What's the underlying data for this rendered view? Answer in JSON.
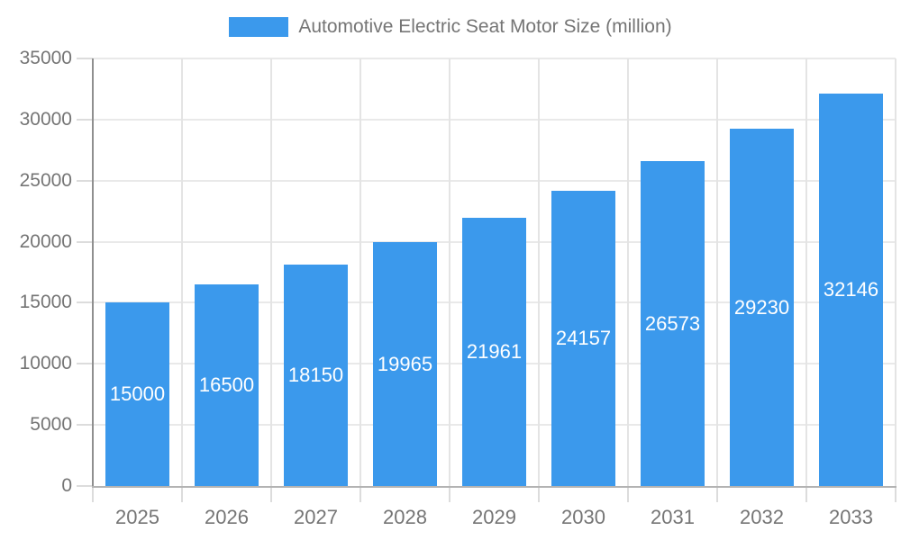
{
  "legend": {
    "items": [
      {
        "label": "Automotive Electric Seat Motor Size (million)",
        "color": "#3b99ec"
      }
    ]
  },
  "chart_data": {
    "type": "bar",
    "categories": [
      "2025",
      "2026",
      "2027",
      "2028",
      "2029",
      "2030",
      "2031",
      "2032",
      "2033"
    ],
    "series": [
      {
        "name": "Automotive Electric Seat Motor Size (million)",
        "values": [
          15000,
          16500,
          18150,
          19965,
          21961,
          24157,
          26573,
          29230,
          32146
        ],
        "color": "#3b99ec"
      }
    ],
    "yticks": [
      0,
      5000,
      10000,
      15000,
      20000,
      25000,
      30000,
      35000
    ],
    "ylim": [
      0,
      35000
    ],
    "grid": true,
    "legend_position": "top-center",
    "value_labels": "inside-center",
    "value_label_color": "#ffffff",
    "axis_text_color": "#757575",
    "background": "#ffffff"
  }
}
